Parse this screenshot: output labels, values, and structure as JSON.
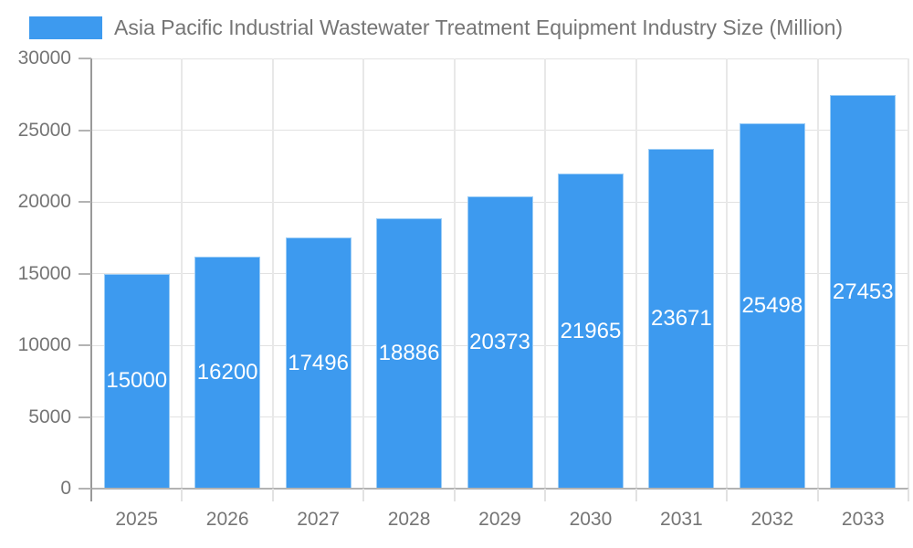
{
  "legend": {
    "label": "Asia Pacific Industrial Wastewater Treatment Equipment Industry Size (Million)"
  },
  "chart_data": {
    "type": "bar",
    "title": "Asia Pacific Industrial Wastewater Treatment Equipment Industry Size (Million)",
    "categories": [
      "2025",
      "2026",
      "2027",
      "2028",
      "2029",
      "2030",
      "2031",
      "2032",
      "2033"
    ],
    "values": [
      15000,
      16200,
      17496,
      18886,
      20373,
      21965,
      23671,
      25498,
      27453
    ],
    "bar_labels": [
      "15000",
      "16200",
      "17496",
      "18886",
      "20373",
      "21965",
      "23671",
      "25498",
      "27453"
    ],
    "xlabel": "",
    "ylabel": "",
    "ylim": [
      0,
      30000
    ],
    "yticks": [
      0,
      5000,
      10000,
      15000,
      20000,
      25000,
      30000
    ],
    "ytick_labels": [
      "0",
      "5000",
      "10000",
      "15000",
      "20000",
      "25000",
      "30000"
    ],
    "grid": true,
    "legend_position": "top-left",
    "bar_label_position": "center-inside",
    "bar_label_color": "#ffffff"
  },
  "colors": {
    "bar_fill": "#3D9AEF",
    "bar_border": "#9CCDF6",
    "axis_text": "#757575",
    "title_text": "#757575",
    "hgrid": "#E2E2E2",
    "vgrid": "#E8E8E8",
    "x_axis_line": "#B3B3B3",
    "y_axis_line": "#999999",
    "y_tick": "#B3B3B3",
    "x_tick": "#E2E2E2"
  }
}
